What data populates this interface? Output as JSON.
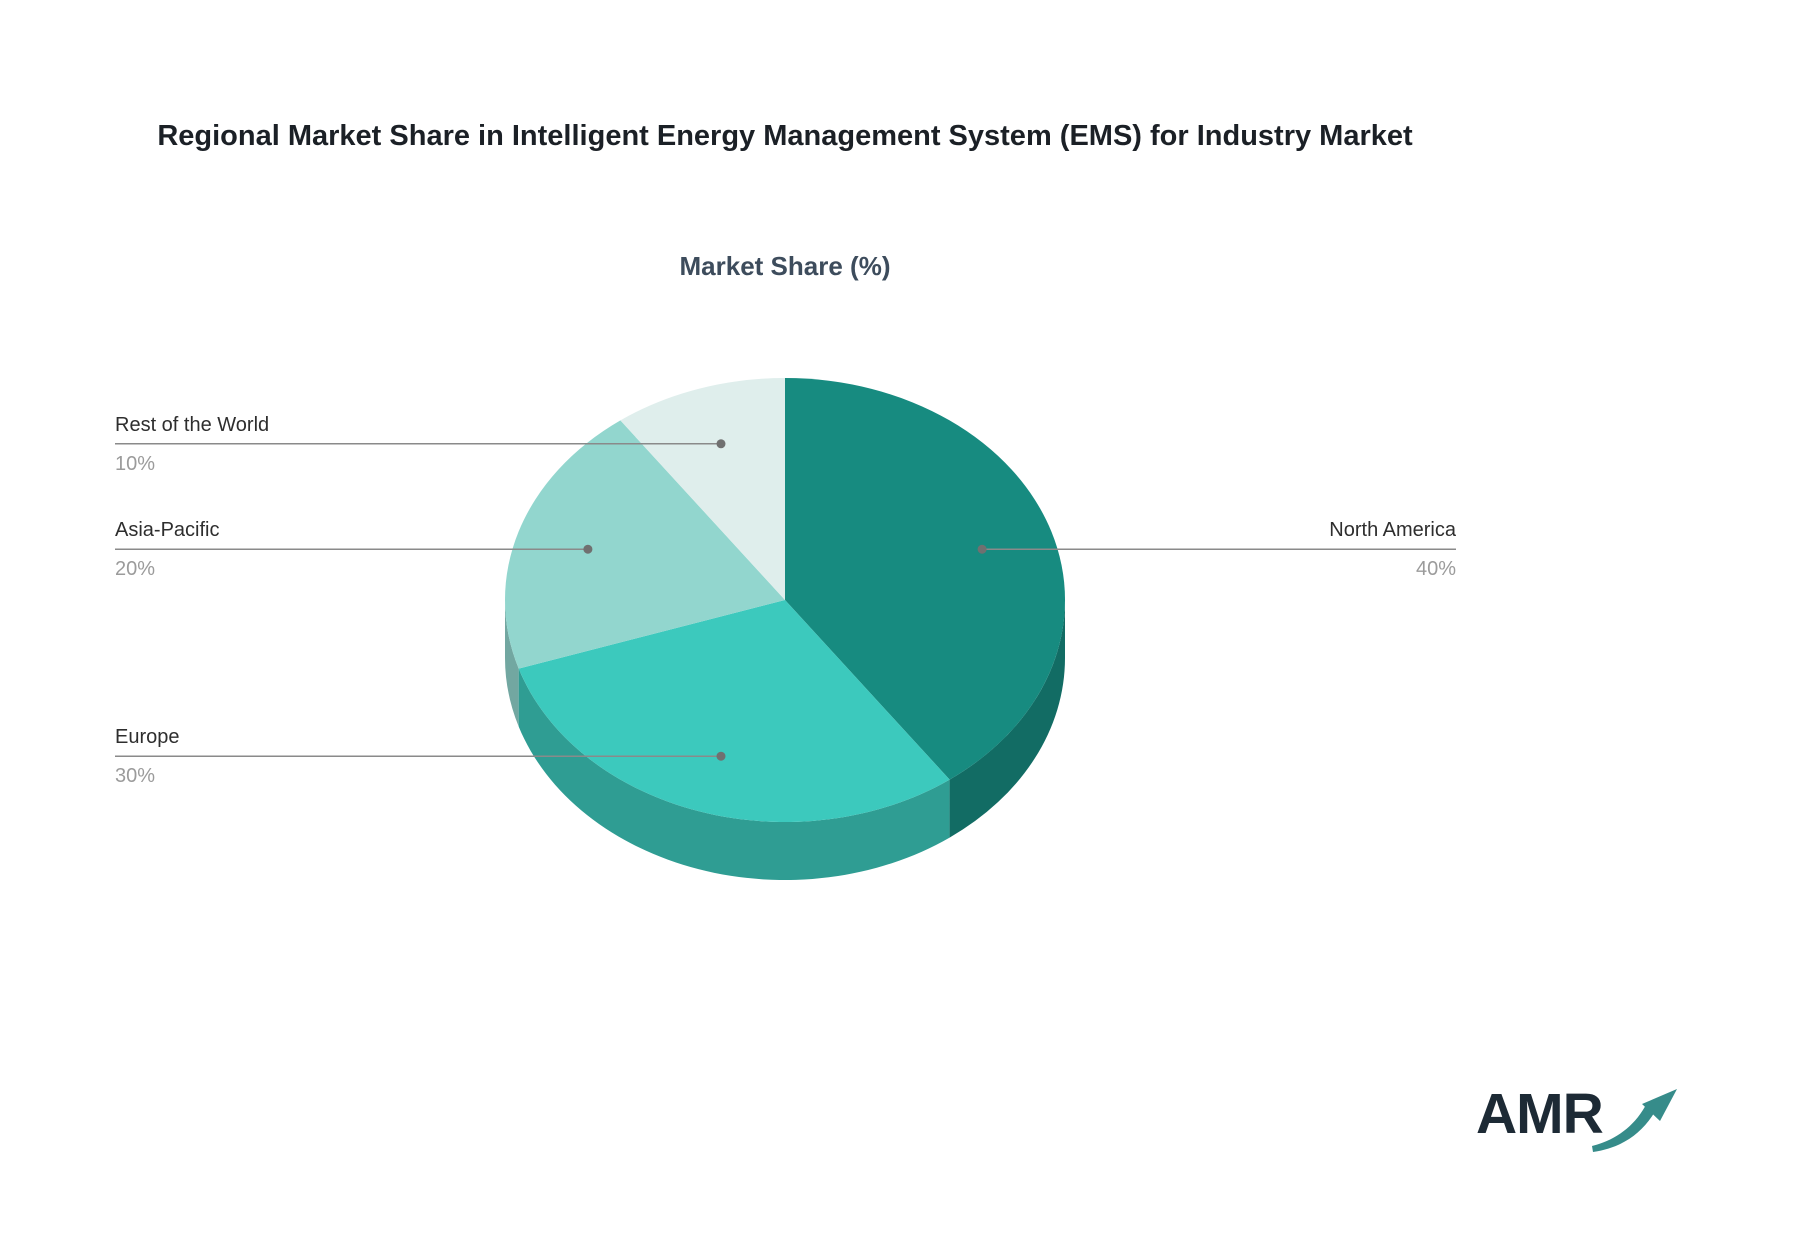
{
  "chart_data": {
    "type": "pie",
    "style_3d": true,
    "title": "Regional Market Share in Intelligent Energy Management System (EMS) for Industry Market",
    "subtitle": "Market Share (%)",
    "direction": "clockwise",
    "start_angle_deg": 0,
    "slices": [
      {
        "label": "North America",
        "value": 40,
        "value_label": "40%",
        "color": "#178b80"
      },
      {
        "label": "Europe",
        "value": 30,
        "value_label": "30%",
        "color": "#3cc9bd"
      },
      {
        "label": "Asia-Pacific",
        "value": 20,
        "value_label": "20%",
        "color": "#92d6ce"
      },
      {
        "label": "Rest of the World",
        "value": 10,
        "value_label": "10%",
        "color": "#dfeeec"
      }
    ],
    "colors": {
      "connector_line": "#8a8a8a",
      "connector_dot": "#707070",
      "label_text": "#2e2e2e",
      "value_text": "#9b9b9b",
      "title_text": "#1b2026",
      "subtitle_text": "#3d4c5c"
    }
  },
  "branding": {
    "logo_text": "AMR",
    "logo_color": "#1d2a35",
    "arrow_color": "#368c8a"
  }
}
